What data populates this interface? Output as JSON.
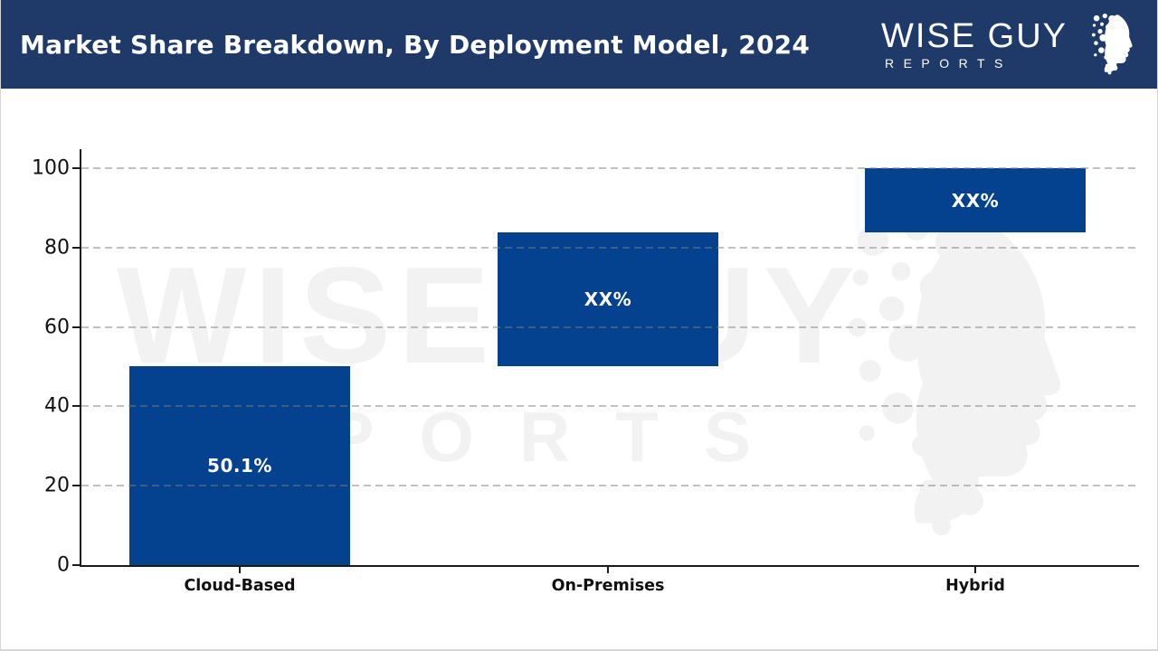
{
  "header": {
    "title": "Market Share Breakdown, By Deployment Model, 2024",
    "logo": {
      "name": "WISE GUY",
      "subtitle": "REPORTS"
    }
  },
  "watermark": {
    "line1": "WISE GUY",
    "line2": "REPORTS"
  },
  "chart_data": {
    "type": "bar",
    "variant": "floating-waterfall",
    "title": "Market Share Breakdown, By Deployment Model, 2024",
    "categories": [
      "Cloud-Based",
      "On-Premises",
      "Hybrid"
    ],
    "bars": [
      {
        "category": "Cloud-Based",
        "start": 0,
        "end": 50.1,
        "label": "50.1%"
      },
      {
        "category": "On-Premises",
        "start": 50.1,
        "end": 83.8,
        "label": "XX%"
      },
      {
        "category": "Hybrid",
        "start": 83.8,
        "end": 100,
        "label": "XX%"
      }
    ],
    "yticks": [
      0,
      20,
      40,
      60,
      80,
      100
    ],
    "ylim": [
      0,
      100
    ],
    "xlabel": "",
    "ylabel": "",
    "grid": "horizontal-dashed",
    "legend_position": "none"
  },
  "colors": {
    "header_bg": "#1f3a68",
    "bar_fill": "#04428f",
    "axis": "#1a1a1a",
    "text": "#111111",
    "bar_label": "#ffffff",
    "watermark": "#f2f2f2",
    "page_border": "#d6d6d6"
  }
}
